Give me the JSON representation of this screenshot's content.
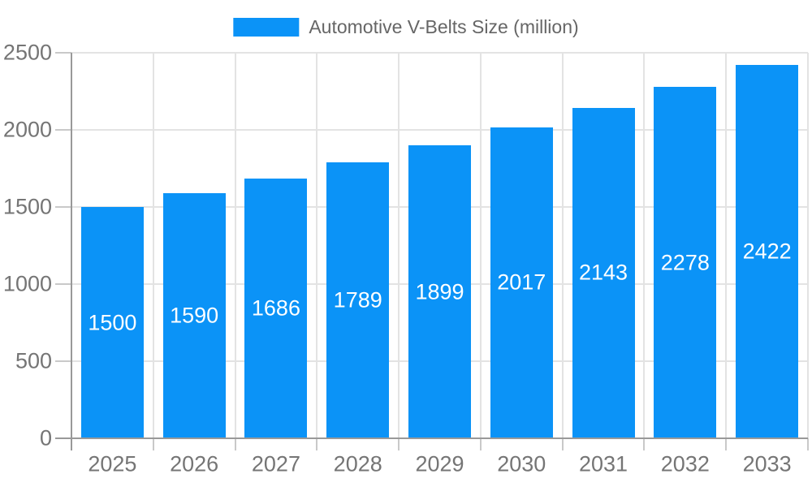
{
  "legend": {
    "label": "Automotive V-Belts Size (million)",
    "swatch_color": "#0B93F7"
  },
  "chart_data": {
    "type": "bar",
    "title": "Automotive V-Belts Size (million)",
    "series_name": "Automotive V-Belts Size (million)",
    "categories": [
      "2025",
      "2026",
      "2027",
      "2028",
      "2029",
      "2030",
      "2031",
      "2032",
      "2033"
    ],
    "values": [
      1500,
      1590,
      1686,
      1789,
      1899,
      2017,
      2143,
      2278,
      2422
    ],
    "xlabel": "",
    "ylabel": "",
    "ylim": [
      0,
      2500
    ],
    "yticks": [
      0,
      500,
      1000,
      1500,
      2000,
      2500
    ],
    "grid": true,
    "legend_position": "top",
    "bar_color": "#0B93F7",
    "value_label_color": "#FFFFFF",
    "value_labels_inside_bars": true
  },
  "style": {
    "background": "#FFFFFF",
    "axis_color": "#999999",
    "tick_color": "#C9C9C9",
    "grid_color": "#E3E3E3",
    "tick_label_color": "#757575",
    "legend_text_color": "#666666"
  }
}
